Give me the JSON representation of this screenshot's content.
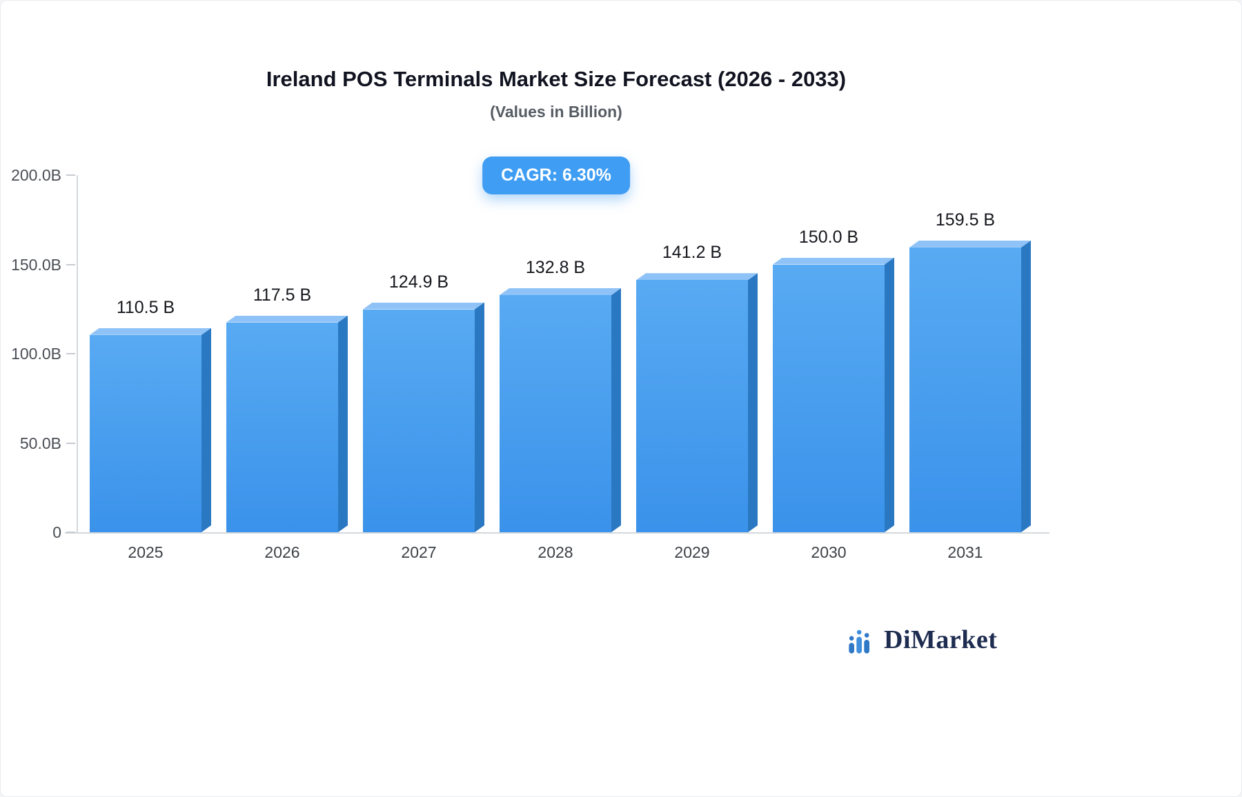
{
  "header": {
    "title": "Ireland POS Terminals Market Size Forecast (2026 - 2033)",
    "subtitle": "(Values in Billion)"
  },
  "badge": {
    "label": "CAGR: 6.30%",
    "color": "#3f9df3"
  },
  "chart_data": {
    "type": "bar",
    "title": "Ireland POS Terminals Market Size Forecast (2026 - 2033)",
    "subtitle": "(Values in Billion)",
    "unit": "Billion",
    "categories": [
      "2025",
      "2026",
      "2027",
      "2028",
      "2029",
      "2030",
      "2031"
    ],
    "values": [
      110.5,
      117.5,
      124.9,
      132.8,
      141.2,
      150.0,
      159.5
    ],
    "bar_labels": [
      "110.5 B",
      "117.5 B",
      "124.9 B",
      "132.8 B",
      "141.2 B",
      "150.0 B",
      "159.5 B"
    ],
    "cagr": "6.30%",
    "ylim": [
      0,
      200
    ],
    "yticks": [
      0,
      50,
      100,
      150,
      200
    ],
    "ytick_labels": [
      "0",
      "50.0B",
      "100.0B",
      "150.0B",
      "200.0B"
    ],
    "grid": false,
    "legend": false,
    "bar_gradient_top": "#58aaf2",
    "bar_gradient_bottom": "#3a92ea",
    "bar_color_top_face": "#8fc3f7",
    "bar_color_side_face": "#2b78c2"
  },
  "logo": {
    "text": "DiMarket"
  }
}
